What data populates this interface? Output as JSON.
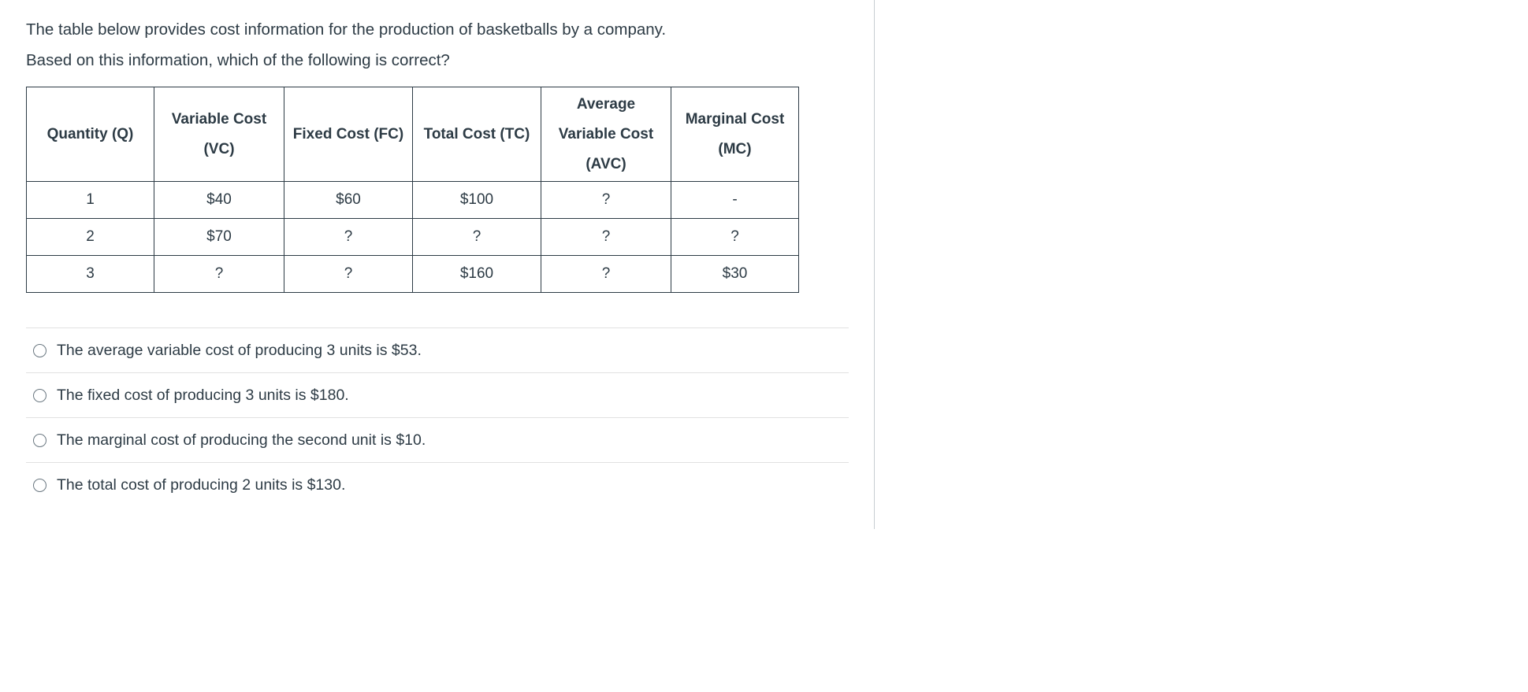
{
  "question": {
    "text": "The table below provides cost information for the production of basketballs by a company.\nBased on this information, which of the following is correct?"
  },
  "table": {
    "headers": [
      "Quantity (Q)",
      "Variable Cost\n(VC)",
      "Fixed Cost (FC)",
      "Total Cost (TC)",
      "Average\nVariable Cost\n(AVC)",
      "Marginal Cost\n(MC)"
    ],
    "rows": [
      [
        "1",
        "$40",
        "$60",
        "$100",
        "?",
        "-"
      ],
      [
        "2",
        "$70",
        "?",
        "?",
        "?",
        "?"
      ],
      [
        "3",
        "?",
        "?",
        "$160",
        "?",
        "$30"
      ]
    ]
  },
  "options": [
    {
      "label": "The average variable cost of producing 3 units is $53."
    },
    {
      "label": "The fixed cost of producing 3 units is $180."
    },
    {
      "label": "The marginal cost of producing the second unit is $10."
    },
    {
      "label": "The total cost of producing 2 units is $130."
    }
  ],
  "colors": {
    "text": "#2D3B45",
    "table_border": "#2D3B45",
    "option_divider": "#E1E1E1",
    "panel_border": "#C7CDD1"
  }
}
